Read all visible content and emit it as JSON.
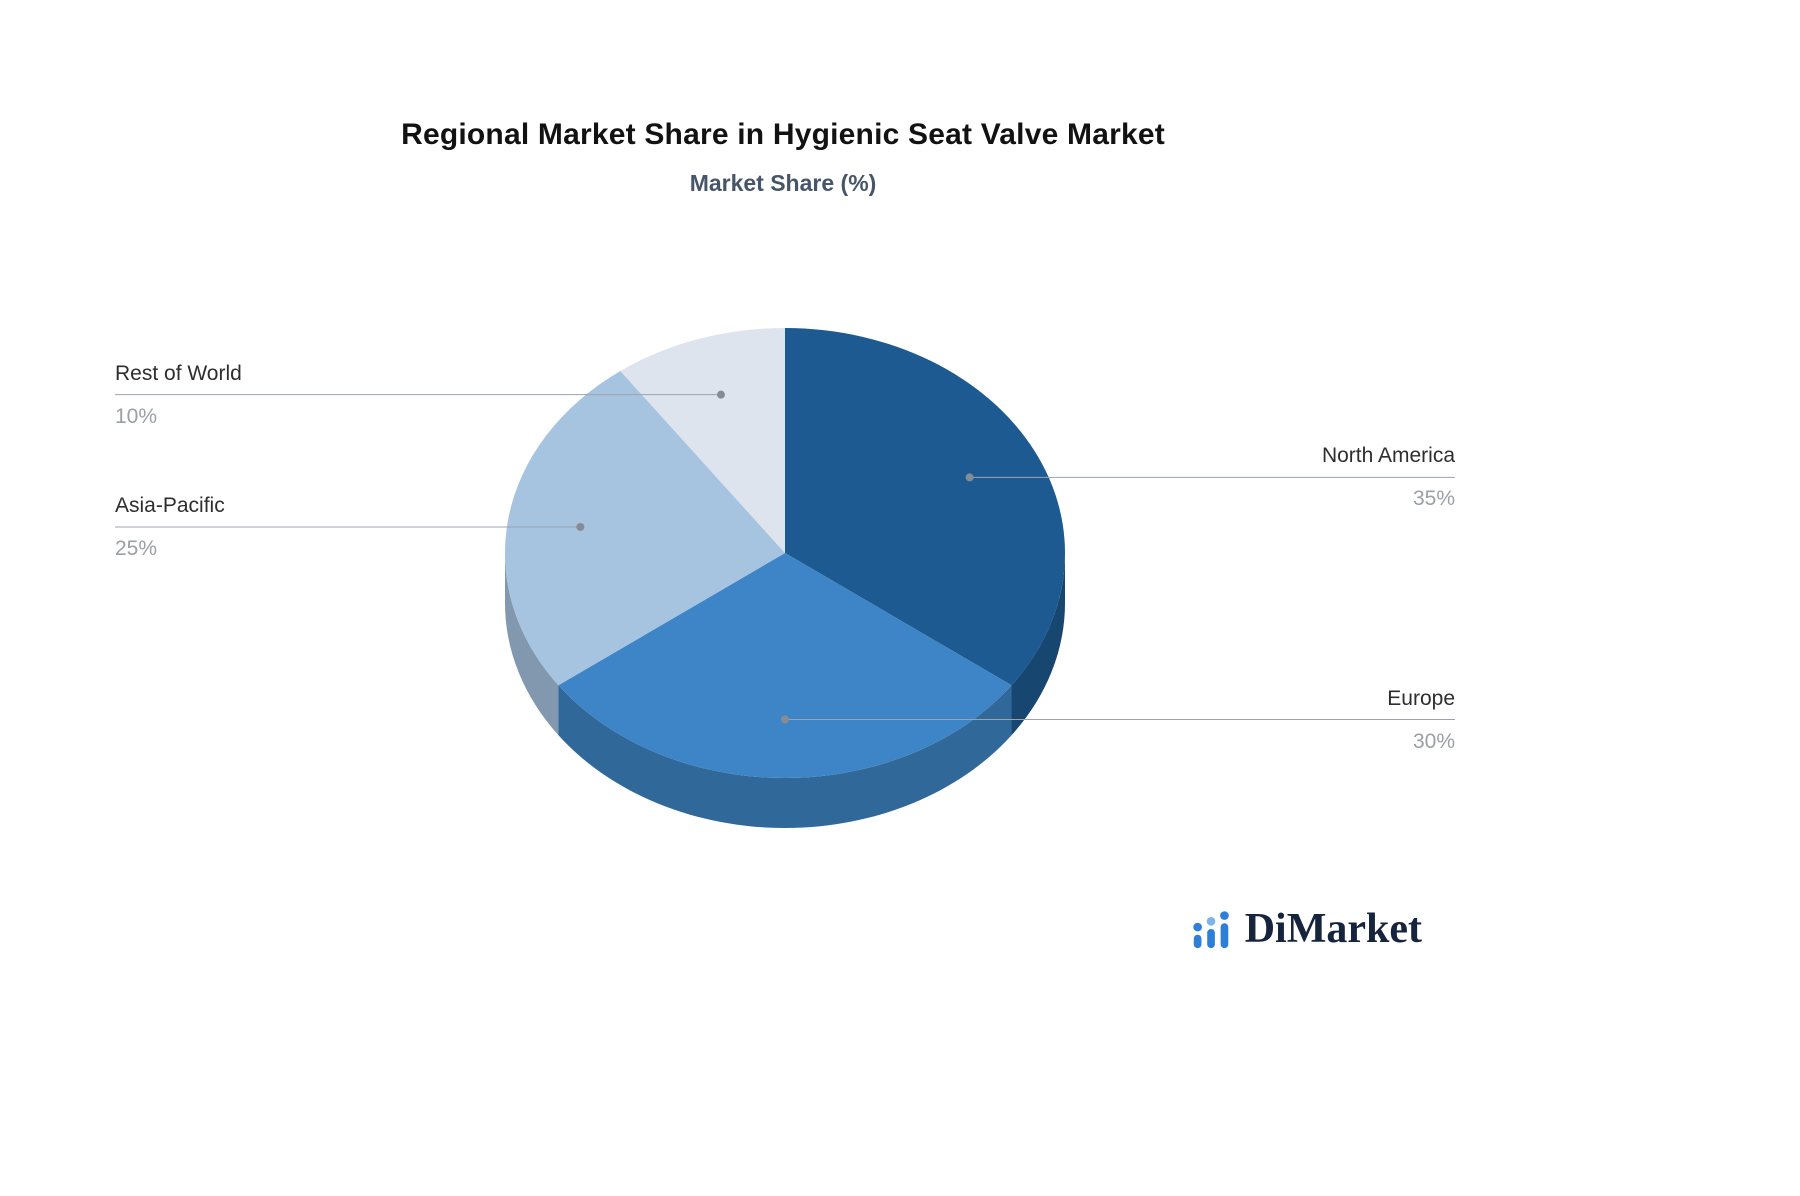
{
  "title": "Regional Market Share in Hygienic Seat Valve Market",
  "subtitle": "Market Share (%)",
  "logo": {
    "text": "DiMarket",
    "icon": "bar-chart-icon",
    "icon_color": "#2e7fd9",
    "text_color": "#16243d"
  },
  "chart_data": {
    "type": "pie",
    "title": "Regional Market Share in Hygienic Seat Valve Market",
    "subtitle": "Market Share (%)",
    "unit": "%",
    "style": "3d",
    "direction": "clockwise",
    "start_angle_deg": 0,
    "legend_position": "callout-labels",
    "leader_line_color": "#9ca3af",
    "dot_color": "#878c94",
    "label_color": "#2e2e2e",
    "value_color": "#9aa0a6",
    "slices": [
      {
        "label": "North America",
        "value": 35,
        "display_value": "35%",
        "color": "#1d5a91"
      },
      {
        "label": "Europe",
        "value": 30,
        "display_value": "30%",
        "color": "#3d85c6"
      },
      {
        "label": "Asia-Pacific",
        "value": 25,
        "display_value": "25%",
        "color": "#a6c3e0"
      },
      {
        "label": "Rest of World",
        "value": 10,
        "display_value": "10%",
        "color": "#dde4ee"
      }
    ]
  }
}
